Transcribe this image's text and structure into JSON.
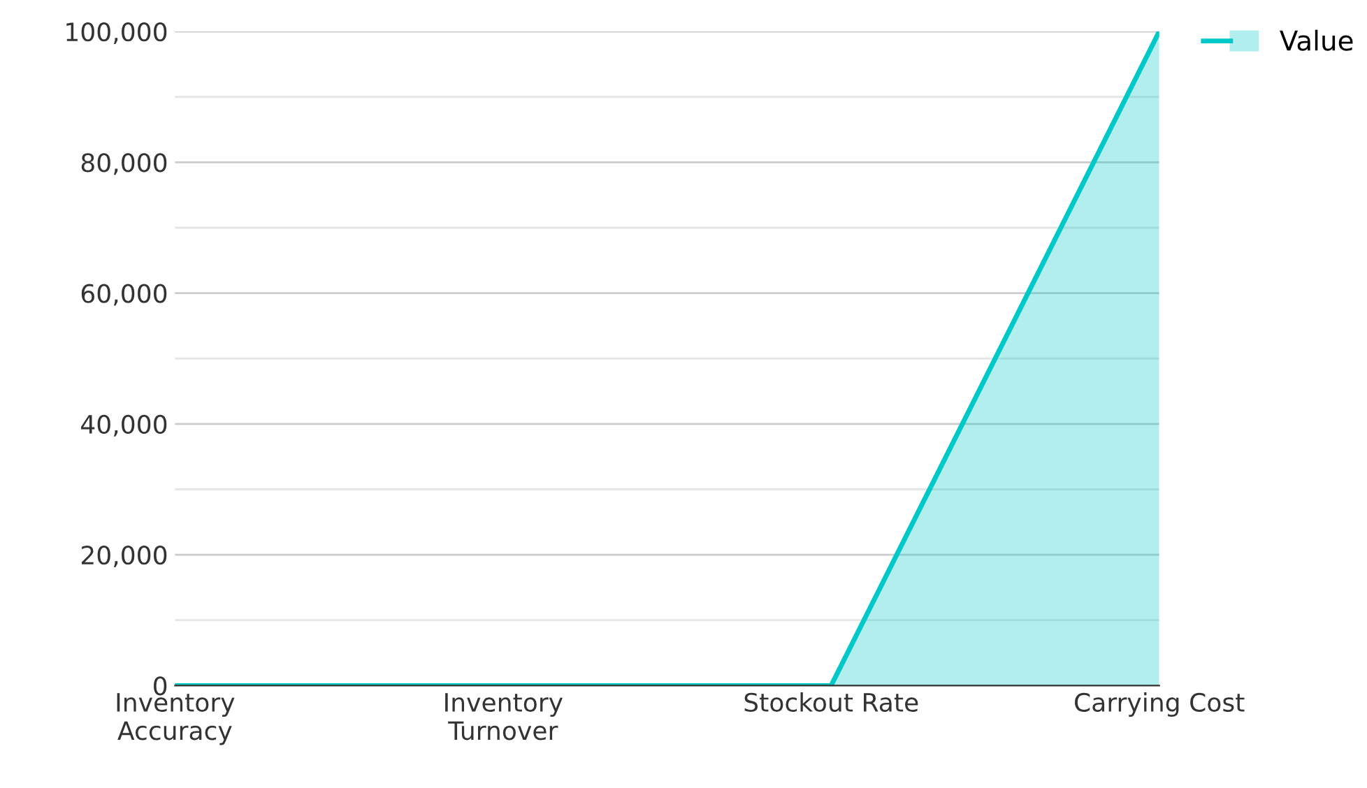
{
  "chart_data": {
    "type": "area",
    "categories": [
      "Inventory\nAccuracy",
      "Inventory\nTurnover",
      "Stockout Rate",
      "Carrying Cost"
    ],
    "series": [
      {
        "name": "Value",
        "color": "#00c8c8",
        "values": [
          0,
          0,
          0,
          100000
        ]
      }
    ],
    "ylim": [
      0,
      100000
    ],
    "yticks": [
      0,
      {
        "value": 10000,
        "label": null
      },
      {
        "value": 20000,
        "label": "20,000"
      },
      {
        "value": 30000,
        "label": null
      },
      {
        "value": 40000,
        "label": "40,000"
      },
      {
        "value": 50000,
        "label": null
      },
      {
        "value": 60000,
        "label": "60,000"
      },
      {
        "value": 70000,
        "label": null
      },
      {
        "value": 80000,
        "label": "80,000"
      },
      {
        "value": 90000,
        "label": null
      },
      {
        "value": 100000,
        "label": "100,000"
      }
    ],
    "grid": "y",
    "legend": "top right",
    "marker": "none",
    "line_style": "solid"
  }
}
